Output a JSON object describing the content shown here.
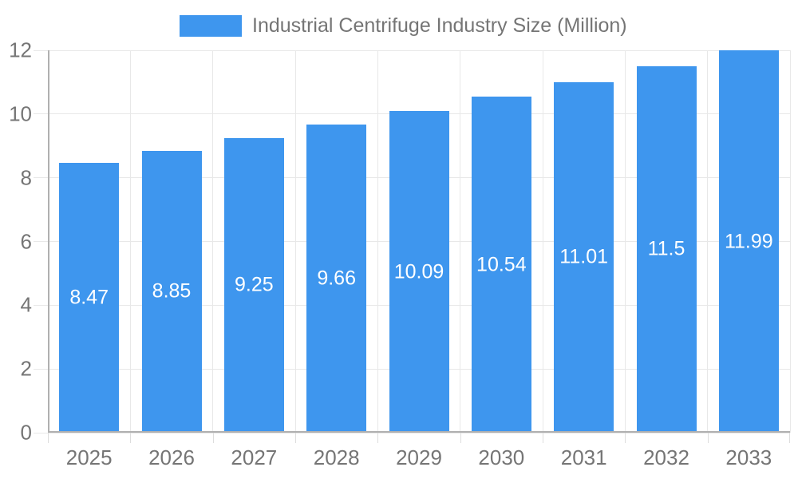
{
  "chart_data": {
    "type": "bar",
    "title": "Industrial Centrifuge Industry Size (Million)",
    "legend_position": "top",
    "categories": [
      "2025",
      "2026",
      "2027",
      "2028",
      "2029",
      "2030",
      "2031",
      "2032",
      "2033"
    ],
    "series": [
      {
        "name": "Industrial Centrifuge Industry Size (Million)",
        "values": [
          8.47,
          8.85,
          9.25,
          9.66,
          10.09,
          10.54,
          11.01,
          11.5,
          11.99
        ],
        "labels": [
          "8.47",
          "8.85",
          "9.25",
          "9.66",
          "10.09",
          "10.54",
          "11.01",
          "11.5",
          "11.99"
        ]
      }
    ],
    "xlabel": "",
    "ylabel": "",
    "ylim": [
      0,
      12
    ],
    "yticks": [
      0,
      2,
      4,
      6,
      8,
      10,
      12
    ],
    "grid": true,
    "bar_label_position": "inside-center",
    "colors": {
      "bar": "#3E96EE",
      "bar_label": "#FFFFFF",
      "axis_text": "#757575",
      "grid_line": "#E8E8E8",
      "axis_line": "#B0B0B0",
      "tick_line": "#DDDDDD",
      "background": "#FFFFFF"
    }
  }
}
